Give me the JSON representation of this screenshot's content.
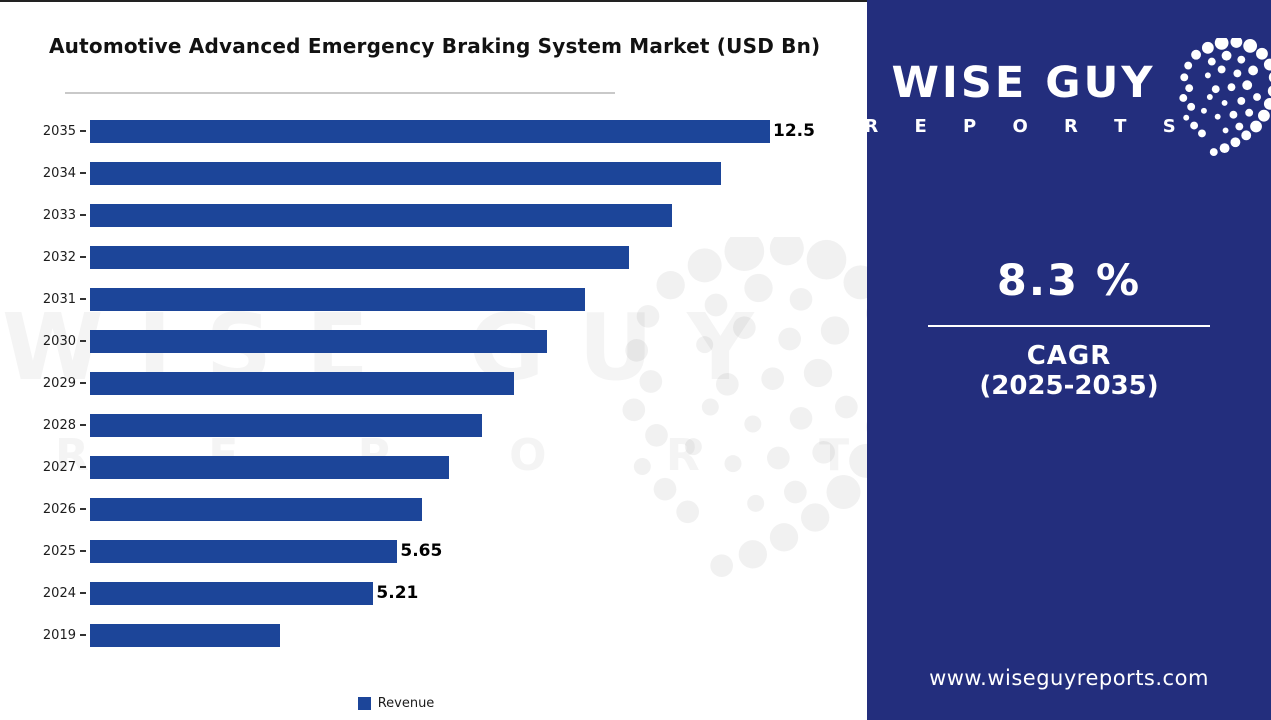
{
  "title": "Automotive Advanced Emergency Braking System Market (USD Bn)",
  "chart_data": {
    "type": "bar",
    "orientation": "horizontal",
    "title": "Automotive Advanced Emergency Braking System Market (USD Bn)",
    "xlabel": "",
    "ylabel": "",
    "xlim": [
      0,
      12.5
    ],
    "grid": false,
    "legend_position": "bottom-center",
    "bar_color": "#1c4599",
    "categories": [
      "2035",
      "2034",
      "2033",
      "2032",
      "2031",
      "2030",
      "2029",
      "2028",
      "2027",
      "2026",
      "2025",
      "2024",
      "2019"
    ],
    "values": [
      12.5,
      11.6,
      10.7,
      9.9,
      9.1,
      8.4,
      7.8,
      7.2,
      6.6,
      6.1,
      5.65,
      5.21,
      3.5
    ],
    "data_labels": [
      "12.5",
      "",
      "",
      "",
      "",
      "",
      "",
      "",
      "",
      "",
      "5.65",
      "5.21",
      ""
    ],
    "series_name": "Revenue"
  },
  "legend": {
    "label": "Revenue"
  },
  "watermark": {
    "line1": "WISE GUY",
    "line2": "R E P O R T S"
  },
  "sidebar": {
    "logo_line1": "WISE GUY",
    "logo_line2": "R E P O R T S",
    "cagr_value": "8.3 %",
    "cagr_label": "CAGR",
    "cagr_period": "(2025-2035)",
    "website": "www.wiseguyreports.com",
    "background_color": "#232e7d"
  }
}
